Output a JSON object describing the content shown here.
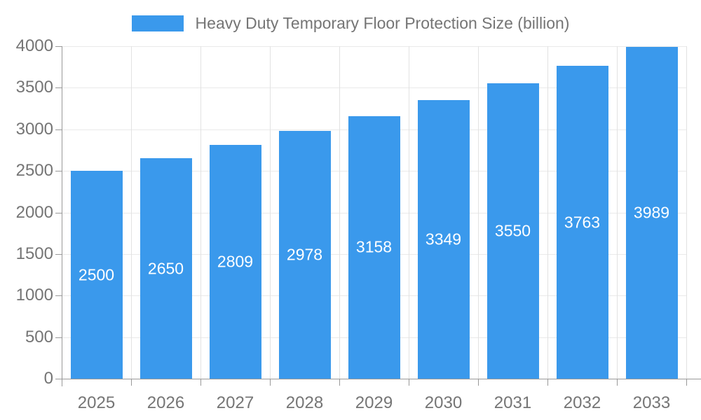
{
  "chart_data": {
    "type": "bar",
    "title": "Heavy Duty Temporary Floor Protection Size (billion)",
    "legend": {
      "position": "top",
      "entries": [
        "Heavy Duty Temporary Floor Protection Size (billion)"
      ]
    },
    "categories": [
      "2025",
      "2026",
      "2027",
      "2028",
      "2029",
      "2030",
      "2031",
      "2032",
      "2033"
    ],
    "series": [
      {
        "name": "Heavy Duty Temporary Floor Protection Size (billion)",
        "values": [
          2500,
          2650,
          2809,
          2978,
          3158,
          3349,
          3550,
          3763,
          3989
        ]
      }
    ],
    "bar_value_labels": [
      "2500",
      "2650",
      "2809",
      "2978",
      "3158",
      "3349",
      "3550",
      "3763",
      "3989"
    ],
    "xlabel": "",
    "ylabel": "",
    "ylim": [
      0,
      4000
    ],
    "y_ticks": [
      0,
      500,
      1000,
      1500,
      2000,
      2500,
      3000,
      3500,
      4000
    ],
    "y_tick_labels": [
      "0",
      "500",
      "1000",
      "1500",
      "2000",
      "2500",
      "3000",
      "3500",
      "4000"
    ],
    "grid": true,
    "colors": {
      "bar": "#3a99ec",
      "bar_value_text": "#ffffff",
      "axis_text": "#757575",
      "axis_line": "#999999",
      "gridline_h": "#e9e9e9",
      "gridline_v": "#e2e2e2",
      "background": "#ffffff"
    }
  }
}
